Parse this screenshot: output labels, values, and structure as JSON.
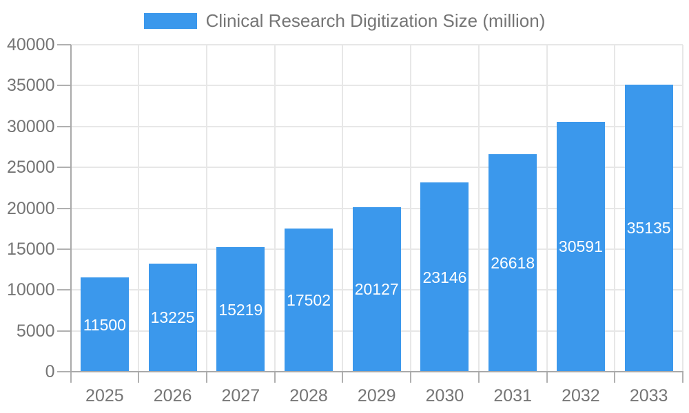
{
  "chart_data": {
    "type": "bar",
    "title": "Clinical Research Digitization Size (million)",
    "legend": {
      "position": "top",
      "label": "Clinical Research Digitization Size (million)"
    },
    "categories": [
      "2025",
      "2026",
      "2027",
      "2028",
      "2029",
      "2030",
      "2031",
      "2032",
      "2033"
    ],
    "series": [
      {
        "name": "Clinical Research Digitization Size (million)",
        "values": [
          11500,
          13225,
          15219,
          17502,
          20127,
          23146,
          26618,
          30591,
          35135
        ]
      }
    ],
    "bar_value_labels": [
      "11500",
      "13225",
      "15219",
      "17502",
      "20127",
      "23146",
      "26618",
      "30591",
      "35135"
    ],
    "xlabel": "",
    "ylabel": "",
    "ylim": [
      0,
      40000
    ],
    "ytick_step": 5000,
    "ytick_labels": [
      "0",
      "5000",
      "10000",
      "15000",
      "20000",
      "25000",
      "30000",
      "35000",
      "40000"
    ],
    "grid": true,
    "colors": {
      "bar": "#3b98ec",
      "bar_label_text": "#ffffff",
      "gridline": "#e7e7e7",
      "axis_line": "#a9a9a9",
      "tick": "#b0b0b0",
      "tick_label": "#757575",
      "legend_text": "#757575",
      "background": "#ffffff"
    }
  }
}
